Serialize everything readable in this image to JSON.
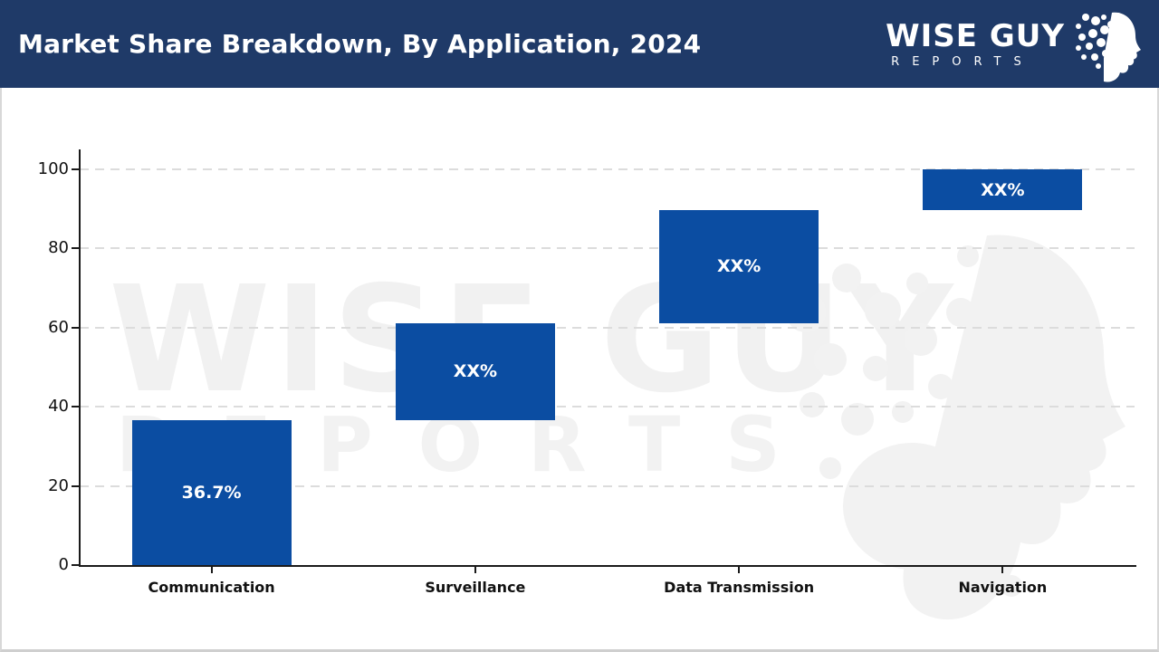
{
  "header": {
    "title": "Market Share Breakdown, By Application, 2024",
    "logo": {
      "line1": "WISE GUY",
      "line2": "REPORTS"
    }
  },
  "watermark": {
    "line1": "WISE GUY",
    "line2": "REPORTS"
  },
  "colors": {
    "header_background": "#1f3a68",
    "bar_fill": "#0b4da2",
    "bar_label": "#ffffff",
    "axis": "#1a1a1a",
    "gridline": "#dcdcdc",
    "watermark": "#f1f1f1"
  },
  "chart_data": {
    "type": "bar",
    "variant": "waterfall",
    "title": "Market Share Breakdown, By Application, 2024",
    "categories": [
      "Communication",
      "Surveillance",
      "Data Transmission",
      "Navigation"
    ],
    "segments": [
      {
        "category": "Communication",
        "start": 0,
        "end": 36.7,
        "label": "36.7%"
      },
      {
        "category": "Surveillance",
        "start": 36.7,
        "end": 61.2,
        "label": "XX%"
      },
      {
        "category": "Data Transmission",
        "start": 61.2,
        "end": 89.6,
        "label": "XX%"
      },
      {
        "category": "Navigation",
        "start": 89.6,
        "end": 100,
        "label": "XX%"
      }
    ],
    "xlabel": "",
    "ylabel": "",
    "yticks": [
      0,
      20,
      40,
      60,
      80,
      100
    ],
    "ylim": [
      0,
      105
    ],
    "grid": "horizontal-dashed",
    "legend": "none"
  }
}
